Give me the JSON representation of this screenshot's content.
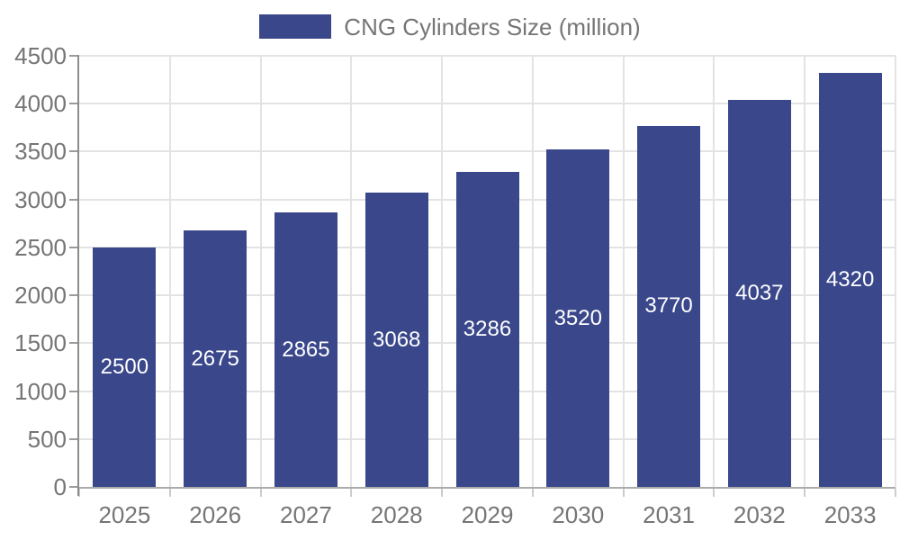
{
  "chart_data": {
    "type": "bar",
    "title": "CNG Cylinders Size (million)",
    "categories": [
      "2025",
      "2026",
      "2027",
      "2028",
      "2029",
      "2030",
      "2031",
      "2032",
      "2033"
    ],
    "series": [
      {
        "name": "CNG Cylinders Size (million)",
        "values": [
          2500,
          2675,
          2865,
          3068,
          3286,
          3520,
          3770,
          4037,
          4320
        ]
      }
    ],
    "xlabel": "",
    "ylabel": "",
    "ylim": [
      0,
      4500
    ],
    "yticks": [
      0,
      500,
      1000,
      1500,
      2000,
      2500,
      3000,
      3500,
      4000,
      4500
    ],
    "grid": true,
    "legend_position": "top-center",
    "value_labels_position": "inside-center",
    "colors": {
      "bar": "#3A478B",
      "bar_label": "#FFFFFF",
      "axis_label": "#757575",
      "gridline": "#E3E3E3",
      "y_axis_line": "#8C8C8C",
      "x_axis_line": "#ABABAB",
      "y_tick": "#9B9B9B",
      "x_tick": "#CCCCCC",
      "background": "#FFFFFF"
    }
  }
}
